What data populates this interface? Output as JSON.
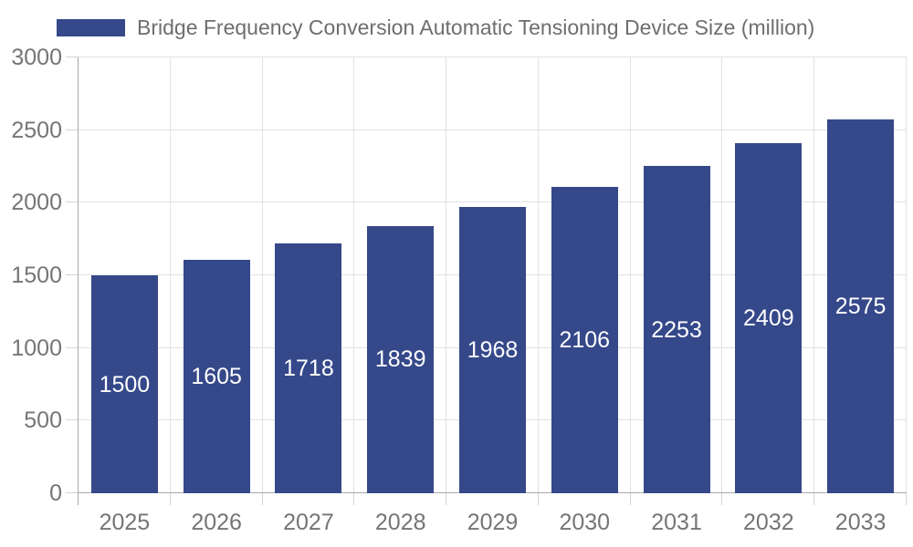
{
  "chart_data": {
    "type": "bar",
    "title": "",
    "legend": "Bridge Frequency Conversion Automatic Tensioning Device Size (million)",
    "categories": [
      "2025",
      "2026",
      "2027",
      "2028",
      "2029",
      "2030",
      "2031",
      "2032",
      "2033"
    ],
    "values": [
      1500,
      1605,
      1718,
      1839,
      1968,
      2106,
      2253,
      2409,
      2575
    ],
    "xlabel": "",
    "ylabel": "",
    "ylim": [
      0,
      3000
    ],
    "yticks": [
      0,
      500,
      1000,
      1500,
      2000,
      2500,
      3000
    ],
    "grid": true,
    "legend_position": "top-left",
    "value_label_position": "inside-center"
  },
  "colors": {
    "bar": "#35488a",
    "bar_label": "#ffffff",
    "axis_text": "#757575",
    "legend_text": "#6e6e6e",
    "gridline": "#e2e2e2",
    "tick_line": "#d4d4d4",
    "axis_line": "#a8a8a8",
    "background": "#ffffff"
  }
}
